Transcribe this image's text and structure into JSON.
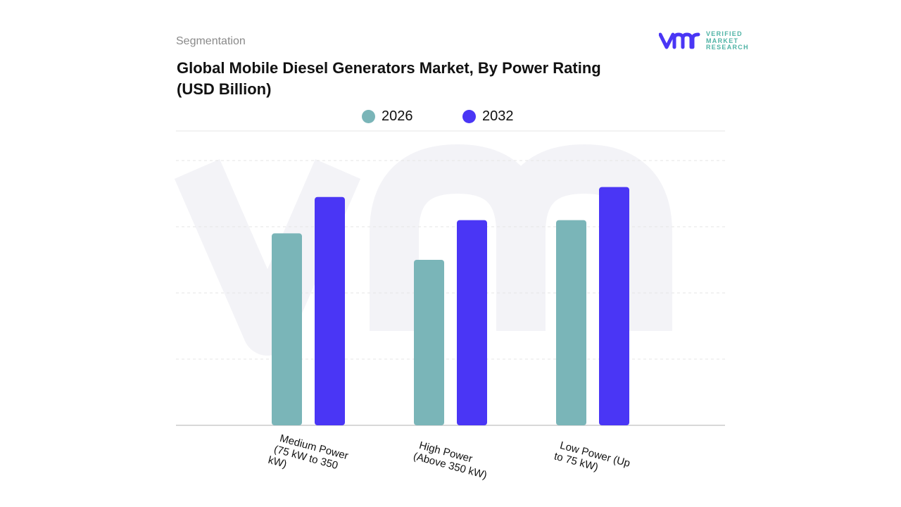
{
  "header": {
    "segment_label": "Segmentation",
    "title": "Global Mobile Diesel Generators Market, By Power Rating (USD Billion)"
  },
  "logo": {
    "mark": "vmr",
    "lines": [
      "VERIFIED",
      "MARKET",
      "RESEARCH"
    ]
  },
  "colors": {
    "s2026": "#7ab5b8",
    "s2032": "#4a36f5",
    "grid": "#dddddd",
    "watermark": "#f3f3f7"
  },
  "chart_data": {
    "type": "bar",
    "title": "Global Mobile Diesel Generators Market, By Power Rating (USD Billion)",
    "categories": [
      "Medium Power (75 kW to 350 kW)",
      "High Power (Above 350 kW)",
      "Low Power (Up to 75 kW)"
    ],
    "category_lines": [
      [
        "Medium Power",
        "(75 kW to 350",
        "kW)"
      ],
      [
        "High Power",
        "(Above 350 kW)"
      ],
      [
        "Low Power (Up",
        "to 75 kW)"
      ]
    ],
    "series": [
      {
        "name": "2026",
        "values": [
          2.9,
          2.5,
          3.1
        ]
      },
      {
        "name": "2032",
        "values": [
          3.45,
          3.1,
          3.6
        ]
      }
    ],
    "xlabel": "",
    "ylabel": "",
    "ylim": [
      0,
      4
    ],
    "grid": true,
    "legend": "top-center"
  }
}
